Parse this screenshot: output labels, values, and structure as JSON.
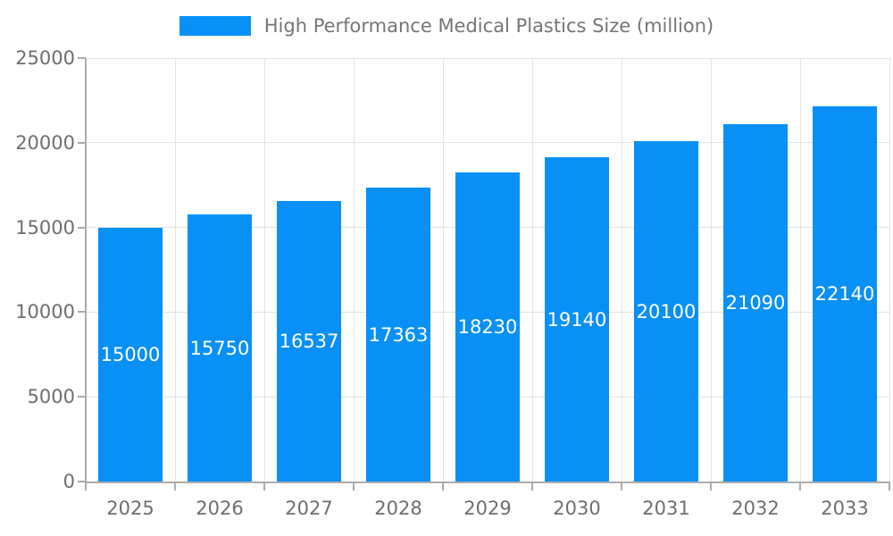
{
  "chart_data": {
    "type": "bar",
    "title": "High Performance Medical Plastics Size (million)",
    "categories": [
      "2025",
      "2026",
      "2027",
      "2028",
      "2029",
      "2030",
      "2031",
      "2032",
      "2033"
    ],
    "series": [
      {
        "name": "High Performance Medical Plastics Size (million)",
        "values": [
          15000,
          15750,
          16537,
          17363,
          18230,
          19140,
          20100,
          21090,
          22140
        ]
      }
    ],
    "value_labels": [
      "15000",
      "15750",
      "16537",
      "17363",
      "18230",
      "19140",
      "20100",
      "21090",
      "22140"
    ],
    "xlabel": "",
    "ylabel": "",
    "ylim": [
      0,
      25000
    ],
    "y_ticks": [
      0,
      5000,
      10000,
      15000,
      20000,
      25000
    ],
    "y_tick_labels": [
      "0",
      "5000",
      "10000",
      "15000",
      "20000",
      "25000"
    ],
    "grid": "on",
    "legend_position": "top-center",
    "value_label_position": "inside-middle"
  },
  "legend": {
    "label": "High Performance Medical Plastics Size (million)"
  },
  "colors": {
    "bar": "#0990f6",
    "bar_value_text": "#ffffff",
    "legend_text": "#757575",
    "axis_text": "#6e6e6e",
    "axis_line": "#ababab",
    "grid_line": "#e3e3e3",
    "background": "#ffffff"
  }
}
